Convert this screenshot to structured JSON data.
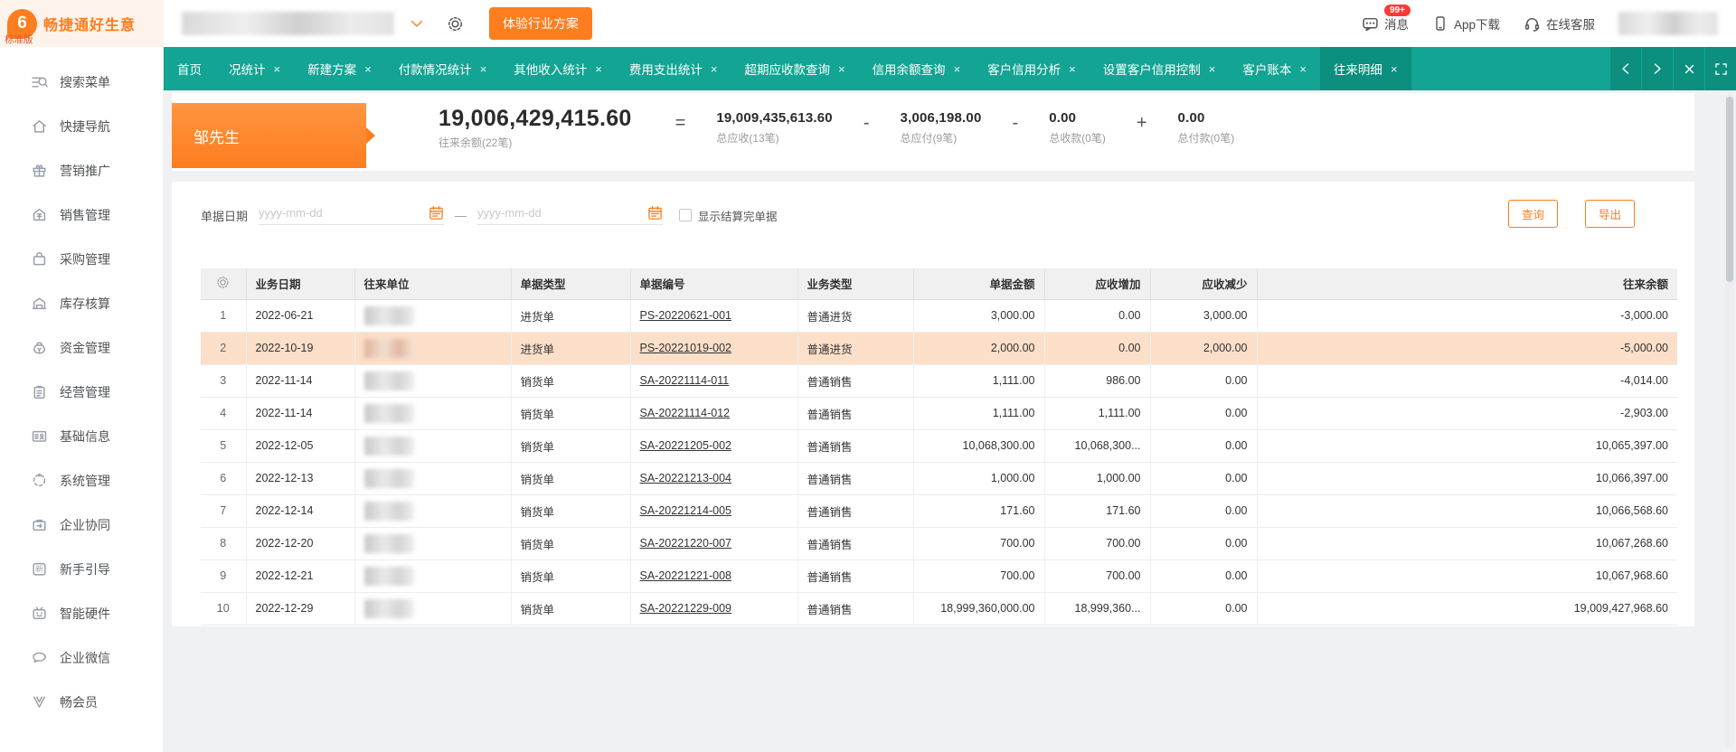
{
  "brand": {
    "logo_glyph": "6",
    "name": "畅捷通好生意",
    "edition": "标准版"
  },
  "header": {
    "experience_button": "体验行业方案",
    "messages_label": "消息",
    "messages_badge": "99+",
    "app_download_label": "App下载",
    "online_service_label": "在线客服"
  },
  "tabs": {
    "active": "往来明细",
    "items": [
      {
        "label": "首页",
        "closable": false
      },
      {
        "label": "况统计",
        "closable": true
      },
      {
        "label": "新建方案",
        "closable": true
      },
      {
        "label": "付款情况统计",
        "closable": true
      },
      {
        "label": "其他收入统计",
        "closable": true
      },
      {
        "label": "费用支出统计",
        "closable": true
      },
      {
        "label": "超期应收款查询",
        "closable": true
      },
      {
        "label": "信用余额查询",
        "closable": true
      },
      {
        "label": "客户信用分析",
        "closable": true
      },
      {
        "label": "设置客户信用控制",
        "closable": true
      },
      {
        "label": "客户账本",
        "closable": true
      },
      {
        "label": "往来明细",
        "closable": true
      }
    ]
  },
  "sidebar": {
    "items": [
      {
        "icon": "search-menu-icon",
        "label": "搜索菜单"
      },
      {
        "icon": "quick-nav-icon",
        "label": "快捷导航"
      },
      {
        "icon": "marketing-icon",
        "label": "营销推广"
      },
      {
        "icon": "sales-icon",
        "label": "销售管理"
      },
      {
        "icon": "purchase-icon",
        "label": "采购管理"
      },
      {
        "icon": "inventory-icon",
        "label": "库存核算"
      },
      {
        "icon": "funds-icon",
        "label": "资金管理"
      },
      {
        "icon": "operations-icon",
        "label": "经营管理"
      },
      {
        "icon": "base-info-icon",
        "label": "基础信息"
      },
      {
        "icon": "system-icon",
        "label": "系统管理"
      },
      {
        "icon": "collaboration-icon",
        "label": "企业协同"
      },
      {
        "icon": "beginner-icon",
        "label": "新手引导"
      },
      {
        "icon": "hardware-icon",
        "label": "智能硬件"
      },
      {
        "icon": "wecom-icon",
        "label": "企业微信"
      },
      {
        "icon": "member-icon",
        "label": "畅会员"
      }
    ]
  },
  "summary": {
    "customer_name": "邹先生",
    "balance": {
      "value": "19,006,429,415.60",
      "label": "往来余额(22笔)"
    },
    "operators": [
      "=",
      "-",
      "-",
      "+"
    ],
    "terms": [
      {
        "value": "19,009,435,613.60",
        "label": "总应收(13笔)"
      },
      {
        "value": "3,006,198.00",
        "label": "总应付(9笔)"
      },
      {
        "value": "0.00",
        "label": "总收款(0笔)"
      },
      {
        "value": "0.00",
        "label": "总付款(0笔)"
      }
    ]
  },
  "filters": {
    "date_label": "单据日期",
    "date_from_placeholder": "yyyy-mm-dd",
    "date_to_placeholder": "yyyy-mm-dd",
    "range_separator": "—",
    "checkbox_label": "显示结算完单据",
    "query_button": "查询",
    "export_button": "导出"
  },
  "table": {
    "columns": [
      "业务日期",
      "往来单位",
      "单据类型",
      "单据编号",
      "业务类型",
      "单据金额",
      "应收增加",
      "应收减少",
      "往来余额"
    ],
    "rows": [
      {
        "no": "1",
        "date": "2022-06-21",
        "doc_type": "进货单",
        "doc_no": "PS-20220621-001",
        "biz_type": "普通进货",
        "amount": "3,000.00",
        "incr": "0.00",
        "decr": "3,000.00",
        "balance": "-3,000.00",
        "highlight": false
      },
      {
        "no": "2",
        "date": "2022-10-19",
        "doc_type": "进货单",
        "doc_no": "PS-20221019-002",
        "biz_type": "普通进货",
        "amount": "2,000.00",
        "incr": "0.00",
        "decr": "2,000.00",
        "balance": "-5,000.00",
        "highlight": true
      },
      {
        "no": "3",
        "date": "2022-11-14",
        "doc_type": "销货单",
        "doc_no": "SA-20221114-011",
        "biz_type": "普通销售",
        "amount": "1,111.00",
        "incr": "986.00",
        "decr": "0.00",
        "balance": "-4,014.00",
        "highlight": false
      },
      {
        "no": "4",
        "date": "2022-11-14",
        "doc_type": "销货单",
        "doc_no": "SA-20221114-012",
        "biz_type": "普通销售",
        "amount": "1,111.00",
        "incr": "1,111.00",
        "decr": "0.00",
        "balance": "-2,903.00",
        "highlight": false
      },
      {
        "no": "5",
        "date": "2022-12-05",
        "doc_type": "销货单",
        "doc_no": "SA-20221205-002",
        "biz_type": "普通销售",
        "amount": "10,068,300.00",
        "incr": "10,068,300...",
        "decr": "0.00",
        "balance": "10,065,397.00",
        "highlight": false
      },
      {
        "no": "6",
        "date": "2022-12-13",
        "doc_type": "销货单",
        "doc_no": "SA-20221213-004",
        "biz_type": "普通销售",
        "amount": "1,000.00",
        "incr": "1,000.00",
        "decr": "0.00",
        "balance": "10,066,397.00",
        "highlight": false
      },
      {
        "no": "7",
        "date": "2022-12-14",
        "doc_type": "销货单",
        "doc_no": "SA-20221214-005",
        "biz_type": "普通销售",
        "amount": "171.60",
        "incr": "171.60",
        "decr": "0.00",
        "balance": "10,066,568.60",
        "highlight": false
      },
      {
        "no": "8",
        "date": "2022-12-20",
        "doc_type": "销货单",
        "doc_no": "SA-20221220-007",
        "biz_type": "普通销售",
        "amount": "700.00",
        "incr": "700.00",
        "decr": "0.00",
        "balance": "10,067,268.60",
        "highlight": false
      },
      {
        "no": "9",
        "date": "2022-12-21",
        "doc_type": "销货单",
        "doc_no": "SA-20221221-008",
        "biz_type": "普通销售",
        "amount": "700.00",
        "incr": "700.00",
        "decr": "0.00",
        "balance": "10,067,968.60",
        "highlight": false
      },
      {
        "no": "10",
        "date": "2022-12-29",
        "doc_type": "销货单",
        "doc_no": "SA-20221229-009",
        "biz_type": "普通销售",
        "amount": "18,999,360,000.00",
        "incr": "18,999,360...",
        "decr": "0.00",
        "balance": "19,009,427,968.60",
        "highlight": false
      }
    ]
  },
  "colors": {
    "accent_orange": "#fd7d1f",
    "tabbar_teal": "#13a493",
    "active_tab_teal": "#0c8f7e",
    "highlight_row": "#fbdfc9",
    "badge_red": "#fa3c35"
  }
}
